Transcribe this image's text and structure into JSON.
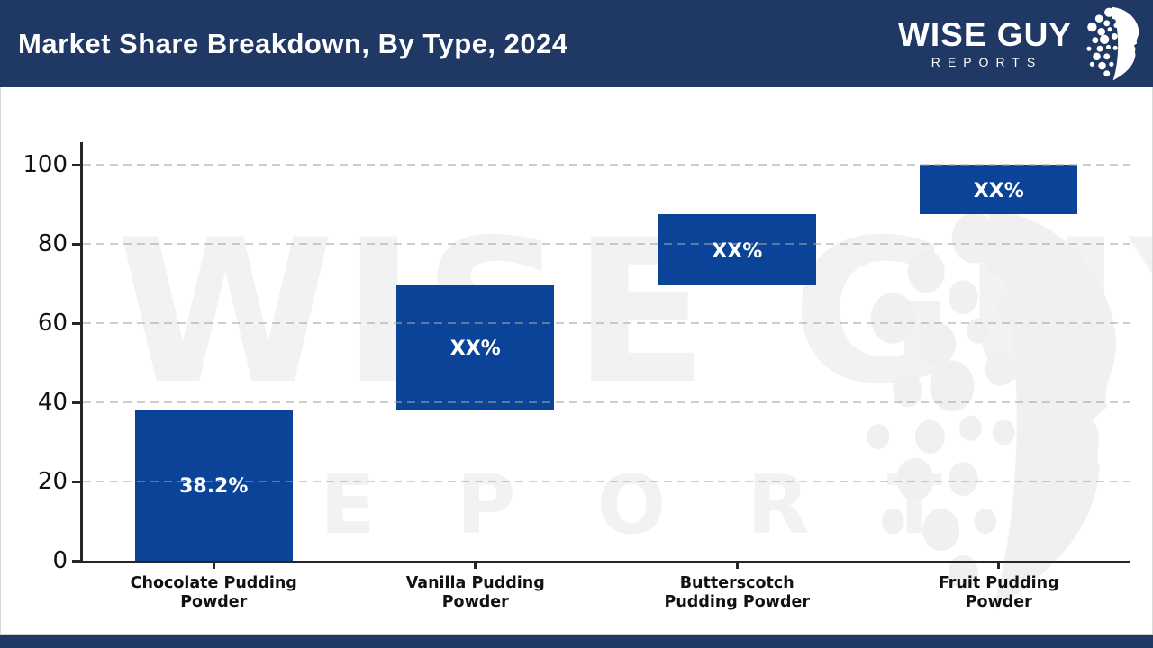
{
  "header": {
    "title": "Market Share Breakdown, By Type, 2024",
    "logo": {
      "name": "WISE GUY",
      "sub": "REPORTS"
    }
  },
  "watermark": {
    "big": "WISE GUY",
    "sub": "REPORTS"
  },
  "colors": {
    "header_bg": "#1f3864",
    "bar": "#0a4397",
    "axis": "#262626",
    "grid": "#a5a5a5",
    "watermark": "#f2f2f4",
    "bar_label": "#ffffff"
  },
  "chart_data": {
    "type": "bar",
    "subtype": "floating-waterfall",
    "title": "Market Share Breakdown, By Type, 2024",
    "categories": [
      "Chocolate Pudding\nPowder",
      "Vanilla Pudding\nPowder",
      "Butterscotch\nPudding Powder",
      "Fruit Pudding\nPowder"
    ],
    "series": [
      {
        "name": "Market share (%)",
        "segments": [
          {
            "category": "Chocolate Pudding Powder",
            "start": 0,
            "end": 38.2,
            "label": "38.2%"
          },
          {
            "category": "Vanilla Pudding Powder",
            "start": 38.2,
            "end": 69.5,
            "label": "XX%"
          },
          {
            "category": "Butterscotch Pudding Powder",
            "start": 69.5,
            "end": 87.5,
            "label": "XX%"
          },
          {
            "category": "Fruit Pudding Powder",
            "start": 87.5,
            "end": 100,
            "label": "XX%"
          }
        ]
      }
    ],
    "xlabel": "",
    "ylabel": "",
    "ylim": [
      0,
      106
    ],
    "yticks": [
      0,
      20,
      40,
      60,
      80,
      100
    ],
    "grid": "horizontal-dashed",
    "legend": "none"
  }
}
